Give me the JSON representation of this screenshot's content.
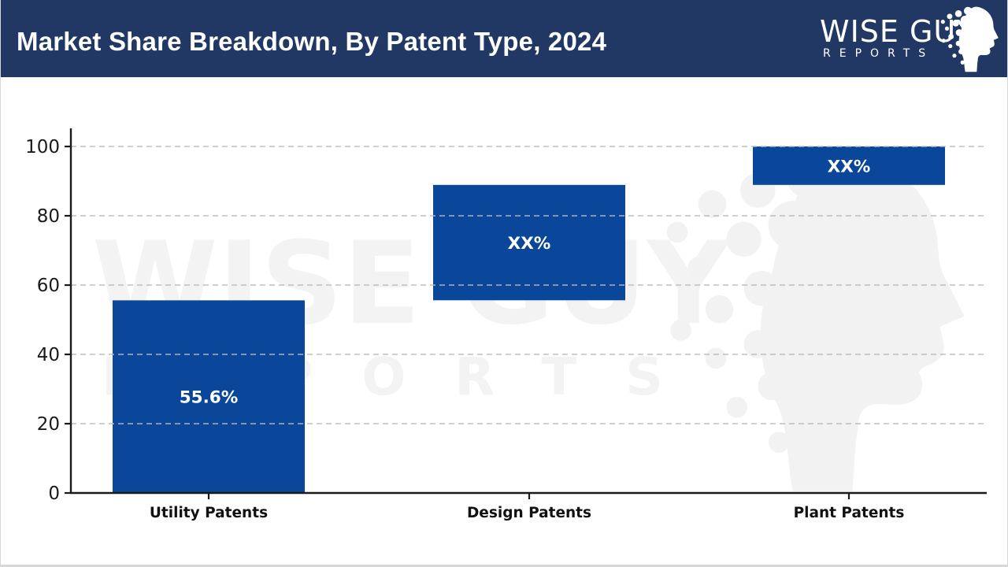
{
  "header": {
    "title": "Market Share Breakdown, By Patent Type, 2024",
    "logo": {
      "brand_line1": "WISE GUY",
      "brand_line2": "REPORTS"
    }
  },
  "watermark": {
    "line1": "WISE GUY",
    "line2": "REPORTS"
  },
  "colors": {
    "header_bg": "#223864",
    "bar_fill": "#0a4699",
    "bar_label": "#ffffff",
    "axis": "#1a1a1a",
    "gridline": "#d9d9d9",
    "watermark": "#f3f3f3"
  },
  "chart_data": {
    "type": "bar",
    "subtype": "waterfall",
    "title": "Market Share Breakdown, By Patent Type, 2024",
    "categories": [
      "Utility Patents",
      "Design Patents",
      "Plant Patents"
    ],
    "segments": [
      {
        "category": "Utility Patents",
        "start": 0,
        "end": 55.6,
        "label": "55.6%"
      },
      {
        "category": "Design Patents",
        "start": 55.6,
        "end": 88.9,
        "label": "XX%"
      },
      {
        "category": "Plant Patents",
        "start": 88.9,
        "end": 100,
        "label": "XX%"
      }
    ],
    "xlabel": "",
    "ylabel": "",
    "ylim": [
      0,
      105
    ],
    "yticks": [
      0,
      20,
      40,
      60,
      80,
      100
    ],
    "grid": true,
    "grid_style": "dashed",
    "legend": false
  }
}
